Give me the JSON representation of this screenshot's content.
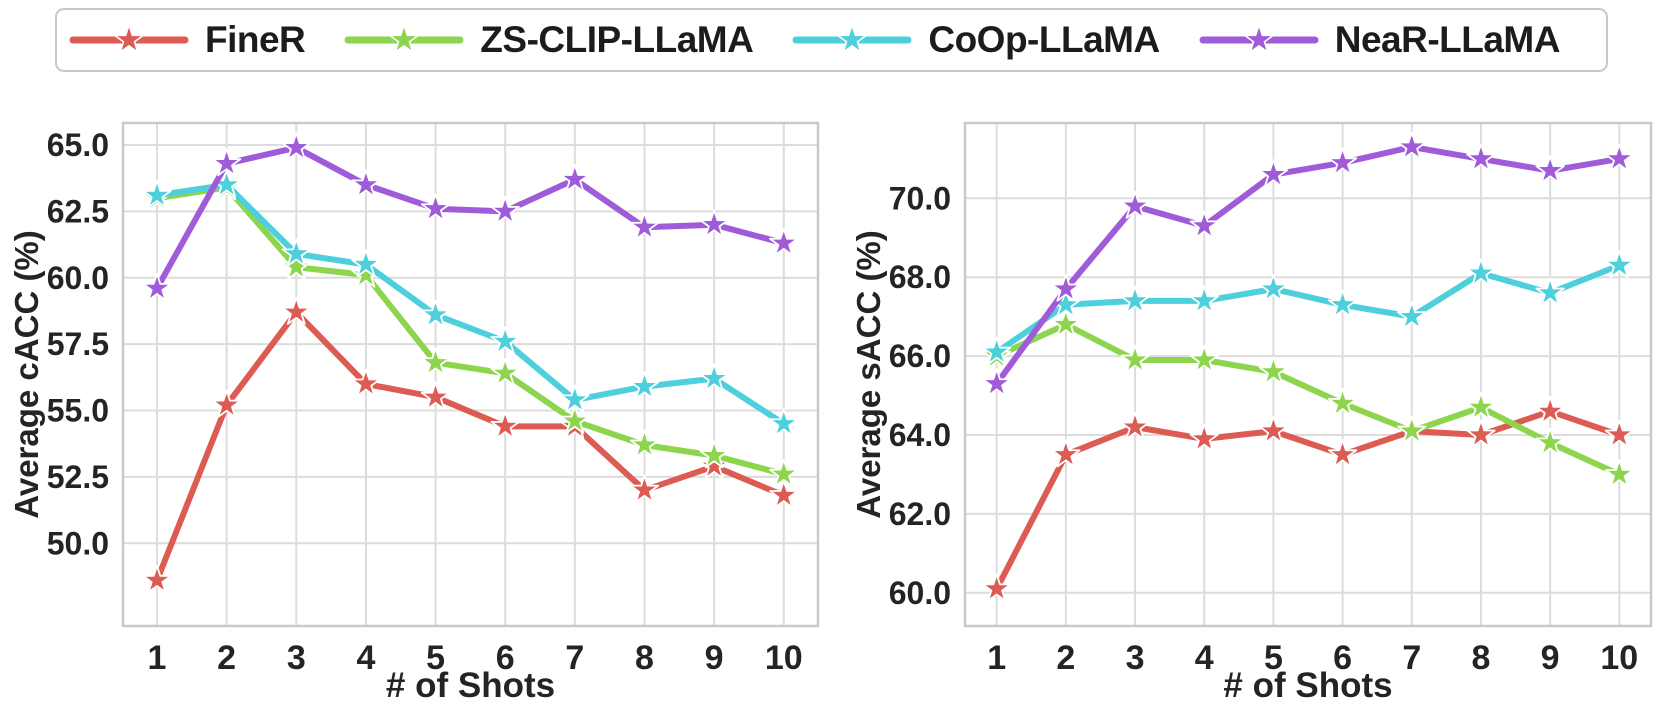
{
  "figure": {
    "background": "#ffffff",
    "text_color": "#242424",
    "grid_color": "#dcdcdc",
    "border_color": "#c9c9c9"
  },
  "legend": {
    "position": "top",
    "items": [
      {
        "label": "FineR",
        "color": "#dc5b52",
        "marker": "star-icon"
      },
      {
        "label": "ZS-CLIP-LLaMA",
        "color": "#8dd54d",
        "marker": "star-icon"
      },
      {
        "label": "CoOp-LLaMA",
        "color": "#4dcfdc",
        "marker": "star-icon"
      },
      {
        "label": "NeaR-LLaMA",
        "color": "#a05bd8",
        "marker": "star-icon"
      }
    ]
  },
  "chart_data": [
    {
      "type": "line",
      "title": "",
      "xlabel": "# of Shots",
      "ylabel": "Average cACC (%)",
      "marker": "star",
      "grid": true,
      "x": [
        1,
        2,
        3,
        4,
        5,
        6,
        7,
        8,
        9,
        10
      ],
      "xtick_labels": [
        "1",
        "2",
        "3",
        "4",
        "5",
        "6",
        "7",
        "8",
        "9",
        "10"
      ],
      "yticks": [
        50.0,
        52.5,
        55.0,
        57.5,
        60.0,
        62.5,
        65.0
      ],
      "ytick_labels": [
        "50.0",
        "52.5",
        "55.0",
        "57.5",
        "60.0",
        "62.5",
        "65.0"
      ],
      "ylim": [
        46.9,
        65.8
      ],
      "xlim": [
        0.51,
        10.49
      ],
      "series": [
        {
          "name": "FineR",
          "color": "#dc5b52",
          "values": [
            48.6,
            55.2,
            58.7,
            56.0,
            55.5,
            54.4,
            54.4,
            52.0,
            52.9,
            51.8
          ]
        },
        {
          "name": "ZS-CLIP-LLaMA",
          "color": "#8dd54d",
          "values": [
            63.0,
            63.4,
            60.4,
            60.1,
            56.8,
            56.4,
            54.6,
            53.7,
            53.3,
            52.6
          ]
        },
        {
          "name": "CoOp-LLaMA",
          "color": "#4dcfdc",
          "values": [
            63.1,
            63.5,
            60.9,
            60.5,
            58.6,
            57.6,
            55.4,
            55.9,
            56.2,
            54.5
          ]
        },
        {
          "name": "NeaR-LLaMA",
          "color": "#a05bd8",
          "values": [
            59.6,
            64.3,
            64.9,
            63.5,
            62.6,
            62.5,
            63.7,
            61.9,
            62.0,
            61.3
          ]
        }
      ]
    },
    {
      "type": "line",
      "title": "",
      "xlabel": "# of Shots",
      "ylabel": "Average sACC (%)",
      "marker": "star",
      "grid": true,
      "x": [
        1,
        2,
        3,
        4,
        5,
        6,
        7,
        8,
        9,
        10
      ],
      "xtick_labels": [
        "1",
        "2",
        "3",
        "4",
        "5",
        "6",
        "7",
        "8",
        "9",
        "10"
      ],
      "yticks": [
        60.0,
        62.0,
        64.0,
        66.0,
        68.0,
        70.0
      ],
      "ytick_labels": [
        "60.0",
        "62.0",
        "64.0",
        "66.0",
        "68.0",
        "70.0"
      ],
      "ylim": [
        59.2,
        71.9
      ],
      "xlim": [
        0.54,
        10.46
      ],
      "series": [
        {
          "name": "FineR",
          "color": "#dc5b52",
          "values": [
            60.1,
            63.5,
            64.2,
            63.9,
            64.1,
            63.5,
            64.1,
            64.0,
            64.6,
            64.0
          ]
        },
        {
          "name": "ZS-CLIP-LLaMA",
          "color": "#8dd54d",
          "values": [
            66.0,
            66.8,
            65.9,
            65.9,
            65.6,
            64.8,
            64.1,
            64.7,
            63.8,
            63.0
          ]
        },
        {
          "name": "CoOp-LLaMA",
          "color": "#4dcfdc",
          "values": [
            66.1,
            67.3,
            67.4,
            67.4,
            67.7,
            67.3,
            67.0,
            68.1,
            67.6,
            68.3
          ]
        },
        {
          "name": "NeaR-LLaMA",
          "color": "#a05bd8",
          "values": [
            65.3,
            67.7,
            69.8,
            69.3,
            70.6,
            70.9,
            71.3,
            71.0,
            70.7,
            71.0
          ]
        }
      ]
    }
  ]
}
